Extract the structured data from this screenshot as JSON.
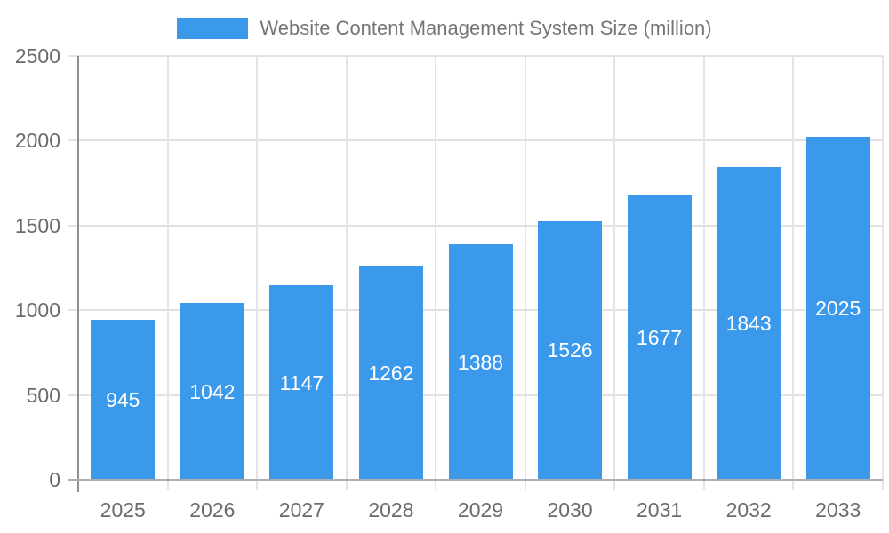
{
  "legend": {
    "label": "Website Content Management System Size (million)"
  },
  "colors": {
    "bar": "#3b99ec",
    "data_label": "#ffffff",
    "axis_text": "#6b6b6b",
    "legend_text": "#757575",
    "gridline": "#e2e2e2"
  },
  "chart_data": {
    "type": "bar",
    "title": "Website Content Management System Size (million)",
    "categories": [
      "2025",
      "2026",
      "2027",
      "2028",
      "2029",
      "2030",
      "2031",
      "2032",
      "2033"
    ],
    "values": [
      945,
      1042,
      1147,
      1262,
      1388,
      1526,
      1677,
      1843,
      2025
    ],
    "series_name": "Website Content Management System Size (million)",
    "xlabel": "",
    "ylabel": "",
    "ylim": [
      0,
      2500
    ],
    "yticks": [
      0,
      500,
      1000,
      1500,
      2000,
      2500
    ],
    "grid": true,
    "legend_position": "top",
    "data_labels": "inside-center"
  }
}
